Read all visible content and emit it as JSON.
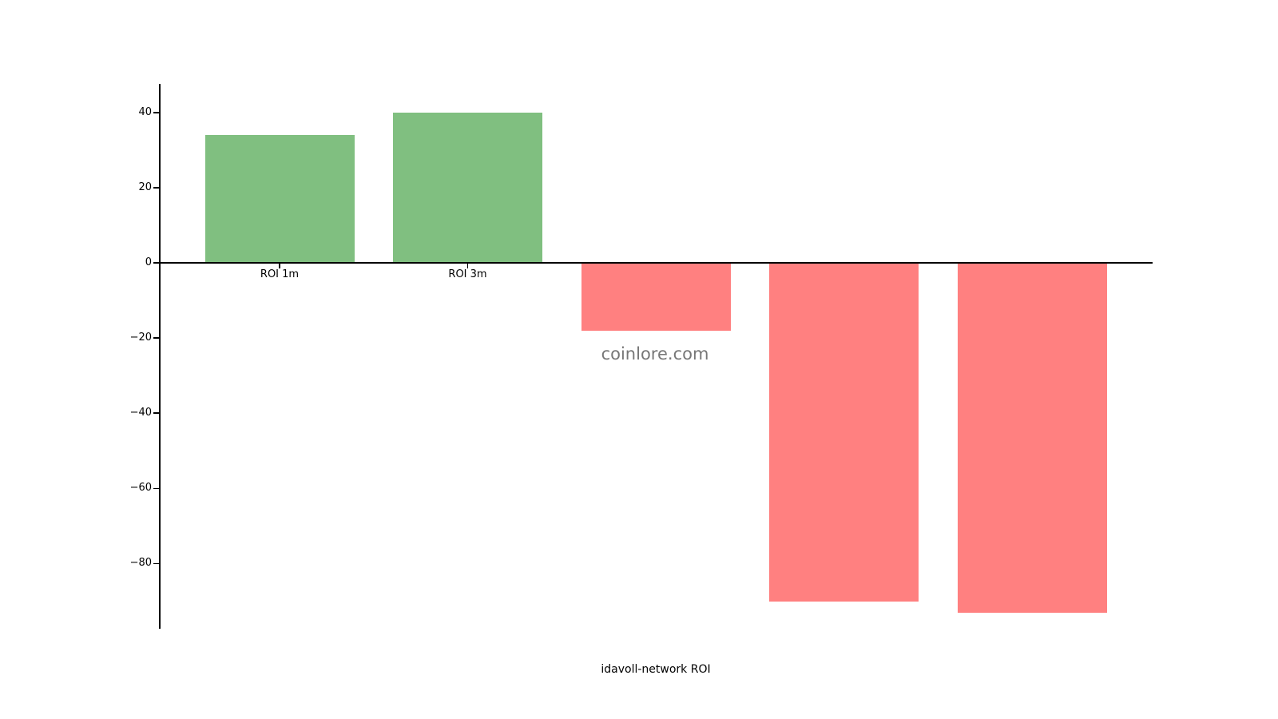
{
  "page": {
    "background": "#ffffff"
  },
  "chart_data": {
    "type": "bar",
    "categories": [
      "ROI 1m",
      "ROI 3m",
      "",
      "",
      ""
    ],
    "values": [
      34,
      40,
      -18,
      -90,
      -93
    ],
    "title": "",
    "xlabel": "idavoll-network ROI",
    "ylabel": "",
    "yticks": [
      40,
      20,
      0,
      -20,
      -40,
      -60,
      -80
    ],
    "ylim": [
      -97,
      47
    ],
    "grid": false,
    "legend": false,
    "watermark": "coinlore.com",
    "colors": {
      "positive": "#80bf80",
      "negative": "#ff8080",
      "axis": "#000000",
      "tick_text": "#000000",
      "watermark": "#777777"
    }
  }
}
